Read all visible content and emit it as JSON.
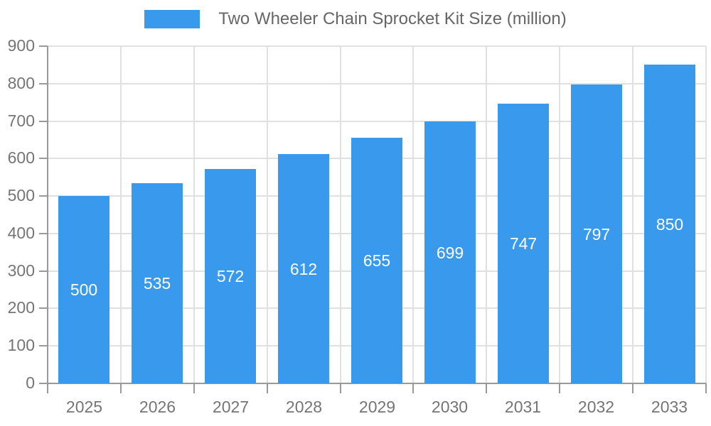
{
  "chart_data": {
    "type": "bar",
    "title": "Two Wheeler Chain Sprocket Kit Size (million)",
    "categories": [
      "2025",
      "2026",
      "2027",
      "2028",
      "2029",
      "2030",
      "2031",
      "2032",
      "2033"
    ],
    "values": [
      500,
      535,
      572,
      612,
      655,
      699,
      747,
      797,
      850
    ],
    "xlabel": "",
    "ylabel": "",
    "ylim": [
      0,
      900
    ],
    "ytick_step": 100,
    "grid": true,
    "legend_position": "top-center",
    "bar_labels_inside": true
  },
  "colors": {
    "bar": "#3999EC",
    "bar_label": "#FFFFFF",
    "axis_line": "#999999",
    "gridline": "#E0E0E0",
    "axis_text": "#757575",
    "legend_text": "#666666",
    "background": "#FFFFFF"
  }
}
